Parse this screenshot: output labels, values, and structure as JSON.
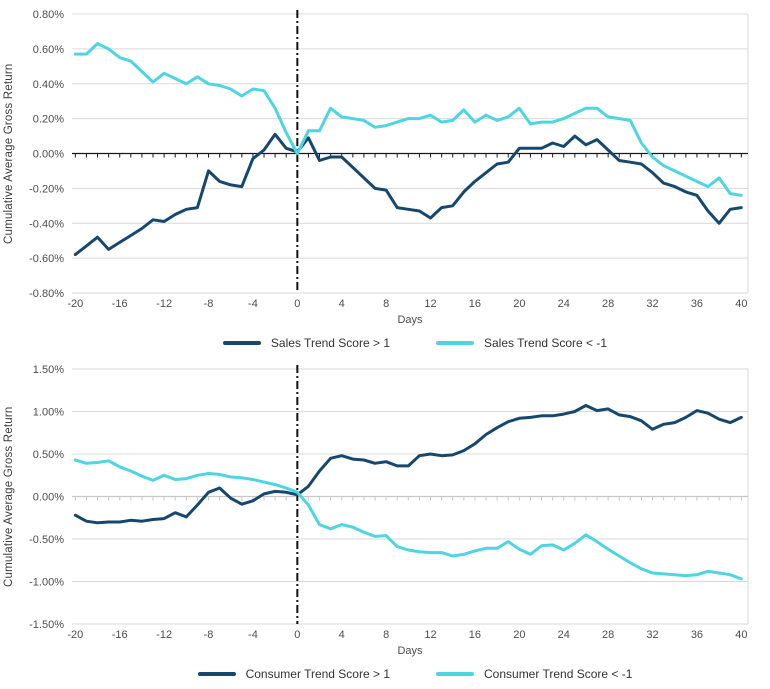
{
  "colors": {
    "navy": "#16486F",
    "cyan": "#4DD5E4",
    "gridline": "#D9D9D9",
    "plot_right_border": "#D9D9D9",
    "axis_dark": "#1A1A1A",
    "axis_light": "#C8C8C8",
    "event_line": "#111111",
    "tick_text": "#4D4D4D"
  },
  "chart_data": [
    {
      "type": "line",
      "ylabel": "Cumulative Average Gross Return",
      "xlabel": "Days",
      "ylim": [
        -0.8,
        0.8
      ],
      "xlim": [
        -20.3,
        40.6
      ],
      "grid": true,
      "legend_position": "bottom",
      "event_line_x": 0,
      "y_ticks": [
        {
          "v": 0.8,
          "label": "0.80%"
        },
        {
          "v": 0.6,
          "label": "0.60%"
        },
        {
          "v": 0.4,
          "label": "0.40%"
        },
        {
          "v": 0.2,
          "label": "0.20%"
        },
        {
          "v": 0.0,
          "label": "0.00%"
        },
        {
          "v": -0.2,
          "label": "-0.20%"
        },
        {
          "v": -0.4,
          "label": "-0.40%"
        },
        {
          "v": -0.6,
          "label": "-0.60%"
        },
        {
          "v": -0.8,
          "label": "-0.80%"
        }
      ],
      "x_ticks": [
        {
          "v": -20,
          "label": "-20"
        },
        {
          "v": -16,
          "label": "-16"
        },
        {
          "v": -12,
          "label": "-12"
        },
        {
          "v": -8,
          "label": "-8"
        },
        {
          "v": -4,
          "label": "-4"
        },
        {
          "v": 0,
          "label": "0"
        },
        {
          "v": 4,
          "label": "4"
        },
        {
          "v": 8,
          "label": "8"
        },
        {
          "v": 12,
          "label": "12"
        },
        {
          "v": 16,
          "label": "16"
        },
        {
          "v": 20,
          "label": "20"
        },
        {
          "v": 24,
          "label": "24"
        },
        {
          "v": 28,
          "label": "28"
        },
        {
          "v": 32,
          "label": "32"
        },
        {
          "v": 36,
          "label": "36"
        },
        {
          "v": 40,
          "label": "40"
        }
      ],
      "x": [
        -20,
        -19,
        -18,
        -17,
        -16,
        -15,
        -14,
        -13,
        -12,
        -11,
        -10,
        -9,
        -8,
        -7,
        -6,
        -5,
        -4,
        -3,
        -2,
        -1,
        0,
        1,
        2,
        3,
        4,
        5,
        6,
        7,
        8,
        9,
        10,
        11,
        12,
        13,
        14,
        15,
        16,
        17,
        18,
        19,
        20,
        21,
        22,
        23,
        24,
        25,
        26,
        27,
        28,
        29,
        30,
        31,
        32,
        33,
        34,
        35,
        36,
        37,
        38,
        39,
        40
      ],
      "series": [
        {
          "name": "Sales Trend Score > 1",
          "color_key": "navy",
          "values": [
            -0.58,
            -0.53,
            -0.48,
            -0.55,
            -0.51,
            -0.47,
            -0.43,
            -0.38,
            -0.39,
            -0.35,
            -0.32,
            -0.31,
            -0.1,
            -0.16,
            -0.18,
            -0.19,
            -0.03,
            0.02,
            0.11,
            0.03,
            0.01,
            0.09,
            -0.04,
            -0.02,
            -0.02,
            -0.08,
            -0.14,
            -0.2,
            -0.21,
            -0.31,
            -0.32,
            -0.33,
            -0.37,
            -0.31,
            -0.3,
            -0.22,
            -0.16,
            -0.11,
            -0.06,
            -0.05,
            0.03,
            0.03,
            0.03,
            0.06,
            0.04,
            0.1,
            0.05,
            0.08,
            0.02,
            -0.04,
            -0.05,
            -0.06,
            -0.11,
            -0.17,
            -0.19,
            -0.22,
            -0.24,
            -0.33,
            -0.4,
            -0.32,
            -0.31
          ]
        },
        {
          "name": "Sales Trend Score < -1",
          "color_key": "cyan",
          "values": [
            0.57,
            0.57,
            0.63,
            0.6,
            0.55,
            0.53,
            0.47,
            0.41,
            0.46,
            0.43,
            0.4,
            0.44,
            0.4,
            0.39,
            0.37,
            0.33,
            0.37,
            0.36,
            0.26,
            0.12,
            0.0,
            0.13,
            0.13,
            0.26,
            0.21,
            0.2,
            0.19,
            0.15,
            0.16,
            0.18,
            0.2,
            0.2,
            0.22,
            0.18,
            0.19,
            0.25,
            0.18,
            0.22,
            0.19,
            0.21,
            0.26,
            0.17,
            0.18,
            0.18,
            0.2,
            0.23,
            0.26,
            0.26,
            0.21,
            0.2,
            0.19,
            0.06,
            -0.02,
            -0.07,
            -0.1,
            -0.13,
            -0.16,
            -0.19,
            -0.14,
            -0.23,
            -0.24
          ]
        }
      ]
    },
    {
      "type": "line",
      "ylabel": "Cumulative Average Gross Return",
      "xlabel": "Days",
      "ylim": [
        -1.5,
        1.5
      ],
      "xlim": [
        -20.3,
        40.6
      ],
      "grid": true,
      "legend_position": "bottom",
      "event_line_x": 0,
      "y_ticks": [
        {
          "v": 1.5,
          "label": "1.50%"
        },
        {
          "v": 1.0,
          "label": "1.00%"
        },
        {
          "v": 0.5,
          "label": "0.50%"
        },
        {
          "v": 0.0,
          "label": "0.00%"
        },
        {
          "v": -0.5,
          "label": "-0.50%"
        },
        {
          "v": -1.0,
          "label": "-1.00%"
        },
        {
          "v": -1.5,
          "label": "-1.50%"
        }
      ],
      "x_ticks": [
        {
          "v": -20,
          "label": "-20"
        },
        {
          "v": -16,
          "label": "-16"
        },
        {
          "v": -12,
          "label": "-12"
        },
        {
          "v": -8,
          "label": "-8"
        },
        {
          "v": -4,
          "label": "-4"
        },
        {
          "v": 0,
          "label": "0"
        },
        {
          "v": 4,
          "label": "4"
        },
        {
          "v": 8,
          "label": "8"
        },
        {
          "v": 12,
          "label": "12"
        },
        {
          "v": 16,
          "label": "16"
        },
        {
          "v": 20,
          "label": "20"
        },
        {
          "v": 24,
          "label": "24"
        },
        {
          "v": 28,
          "label": "28"
        },
        {
          "v": 32,
          "label": "32"
        },
        {
          "v": 36,
          "label": "36"
        },
        {
          "v": 40,
          "label": "40"
        }
      ],
      "x": [
        -20,
        -19,
        -18,
        -17,
        -16,
        -15,
        -14,
        -13,
        -12,
        -11,
        -10,
        -9,
        -8,
        -7,
        -6,
        -5,
        -4,
        -3,
        -2,
        -1,
        0,
        1,
        2,
        3,
        4,
        5,
        6,
        7,
        8,
        9,
        10,
        11,
        12,
        13,
        14,
        15,
        16,
        17,
        18,
        19,
        20,
        21,
        22,
        23,
        24,
        25,
        26,
        27,
        28,
        29,
        30,
        31,
        32,
        33,
        34,
        35,
        36,
        37,
        38,
        39,
        40
      ],
      "series": [
        {
          "name": "Consumer Trend Score > 1",
          "color_key": "navy",
          "values": [
            -0.22,
            -0.29,
            -0.31,
            -0.3,
            -0.3,
            -0.28,
            -0.29,
            -0.27,
            -0.26,
            -0.19,
            -0.24,
            -0.1,
            0.05,
            0.1,
            -0.02,
            -0.09,
            -0.05,
            0.03,
            0.06,
            0.05,
            0.02,
            0.12,
            0.3,
            0.45,
            0.48,
            0.44,
            0.43,
            0.39,
            0.41,
            0.36,
            0.36,
            0.48,
            0.5,
            0.48,
            0.49,
            0.54,
            0.62,
            0.73,
            0.81,
            0.88,
            0.92,
            0.93,
            0.95,
            0.95,
            0.97,
            1.0,
            1.07,
            1.01,
            1.03,
            0.96,
            0.94,
            0.89,
            0.79,
            0.85,
            0.87,
            0.93,
            1.01,
            0.98,
            0.91,
            0.87,
            0.93
          ]
        },
        {
          "name": "Consumer Trend Score < -1",
          "color_key": "cyan",
          "values": [
            0.43,
            0.39,
            0.4,
            0.42,
            0.35,
            0.3,
            0.24,
            0.19,
            0.25,
            0.2,
            0.21,
            0.25,
            0.27,
            0.26,
            0.23,
            0.22,
            0.2,
            0.17,
            0.14,
            0.1,
            0.05,
            -0.1,
            -0.33,
            -0.38,
            -0.33,
            -0.36,
            -0.42,
            -0.47,
            -0.46,
            -0.59,
            -0.63,
            -0.65,
            -0.66,
            -0.66,
            -0.7,
            -0.68,
            -0.64,
            -0.61,
            -0.61,
            -0.53,
            -0.62,
            -0.68,
            -0.58,
            -0.57,
            -0.63,
            -0.55,
            -0.45,
            -0.53,
            -0.62,
            -0.7,
            -0.78,
            -0.85,
            -0.9,
            -0.91,
            -0.92,
            -0.93,
            -0.92,
            -0.88,
            -0.9,
            -0.92,
            -0.97
          ]
        }
      ]
    }
  ]
}
